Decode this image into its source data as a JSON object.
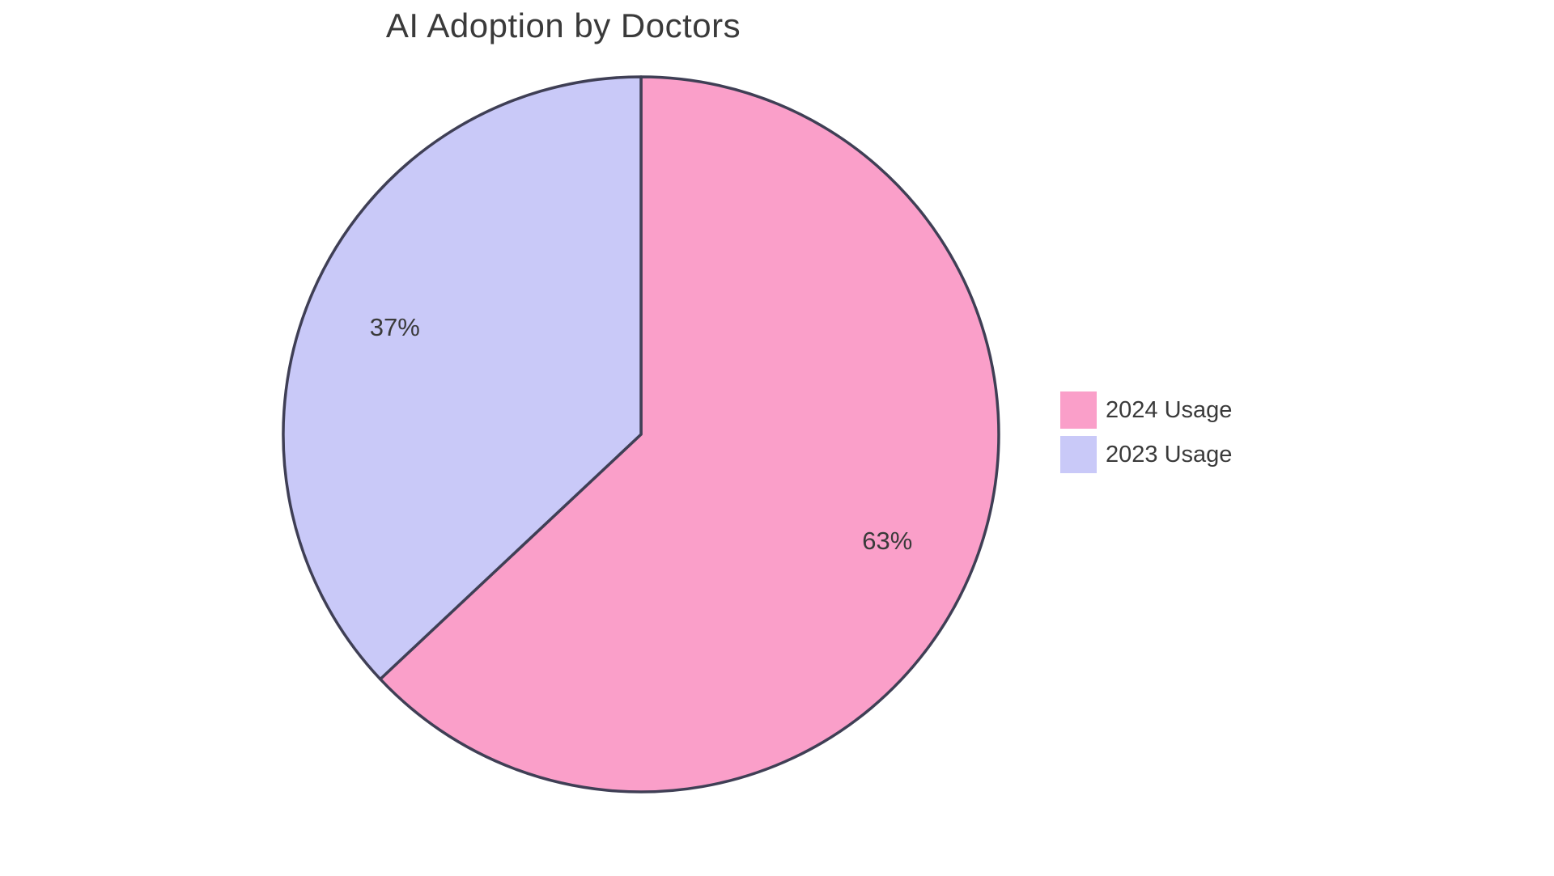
{
  "page": {
    "background_color": "#FFFFFF"
  },
  "chart_data": {
    "type": "pie",
    "title": "AI Adoption by Doctors",
    "start_angle": "top",
    "direction": "clockwise",
    "legend_position": "right",
    "grid": false,
    "slices": [
      {
        "label": "2024 Usage",
        "value": 63,
        "pct_label": "63%",
        "color": "#FA9FC9"
      },
      {
        "label": "2023 Usage",
        "value": 37,
        "pct_label": "37%",
        "color": "#C9C9F8"
      }
    ],
    "outline_color": "#3F3F55",
    "title_color": "#3A3A3A",
    "label_color": "#3A3A3A"
  }
}
